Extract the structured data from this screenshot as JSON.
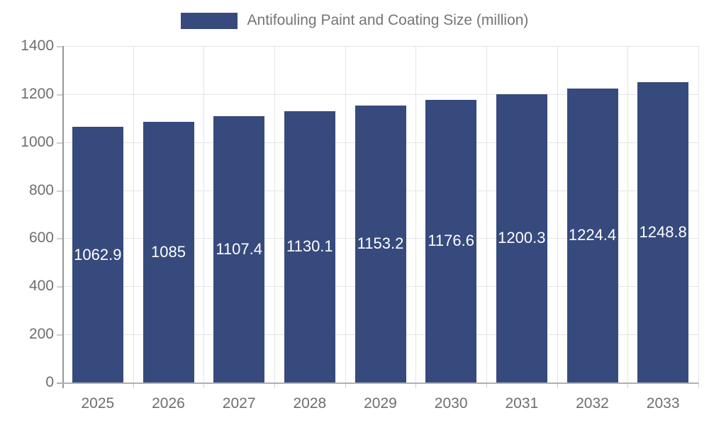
{
  "chart_data": {
    "type": "bar",
    "title": "Antifouling Paint and Coating Size (million)",
    "categories": [
      "2025",
      "2026",
      "2027",
      "2028",
      "2029",
      "2030",
      "2031",
      "2032",
      "2033"
    ],
    "values": [
      1062.9,
      1085,
      1107.4,
      1130.1,
      1153.2,
      1176.6,
      1200.3,
      1224.4,
      1248.8
    ],
    "value_labels": [
      "1062.9",
      "1085",
      "1107.4",
      "1130.1",
      "1153.2",
      "1176.6",
      "1200.3",
      "1224.4",
      "1248.8"
    ],
    "xlabel": "",
    "ylabel": "",
    "ylim": [
      0,
      1400
    ],
    "yticks": [
      0,
      200,
      400,
      600,
      800,
      1000,
      1200,
      1400
    ],
    "grid": true,
    "legend_position": "top-center",
    "colors": {
      "bar": "#374a7d",
      "axis_text": "#6e6e6e",
      "legend_text": "#757575",
      "gridline": "#e4e4e4",
      "y_axis_line": "#979797",
      "x_axis_line": "#b0b0b0",
      "bar_label_text": "#ffffff"
    }
  }
}
